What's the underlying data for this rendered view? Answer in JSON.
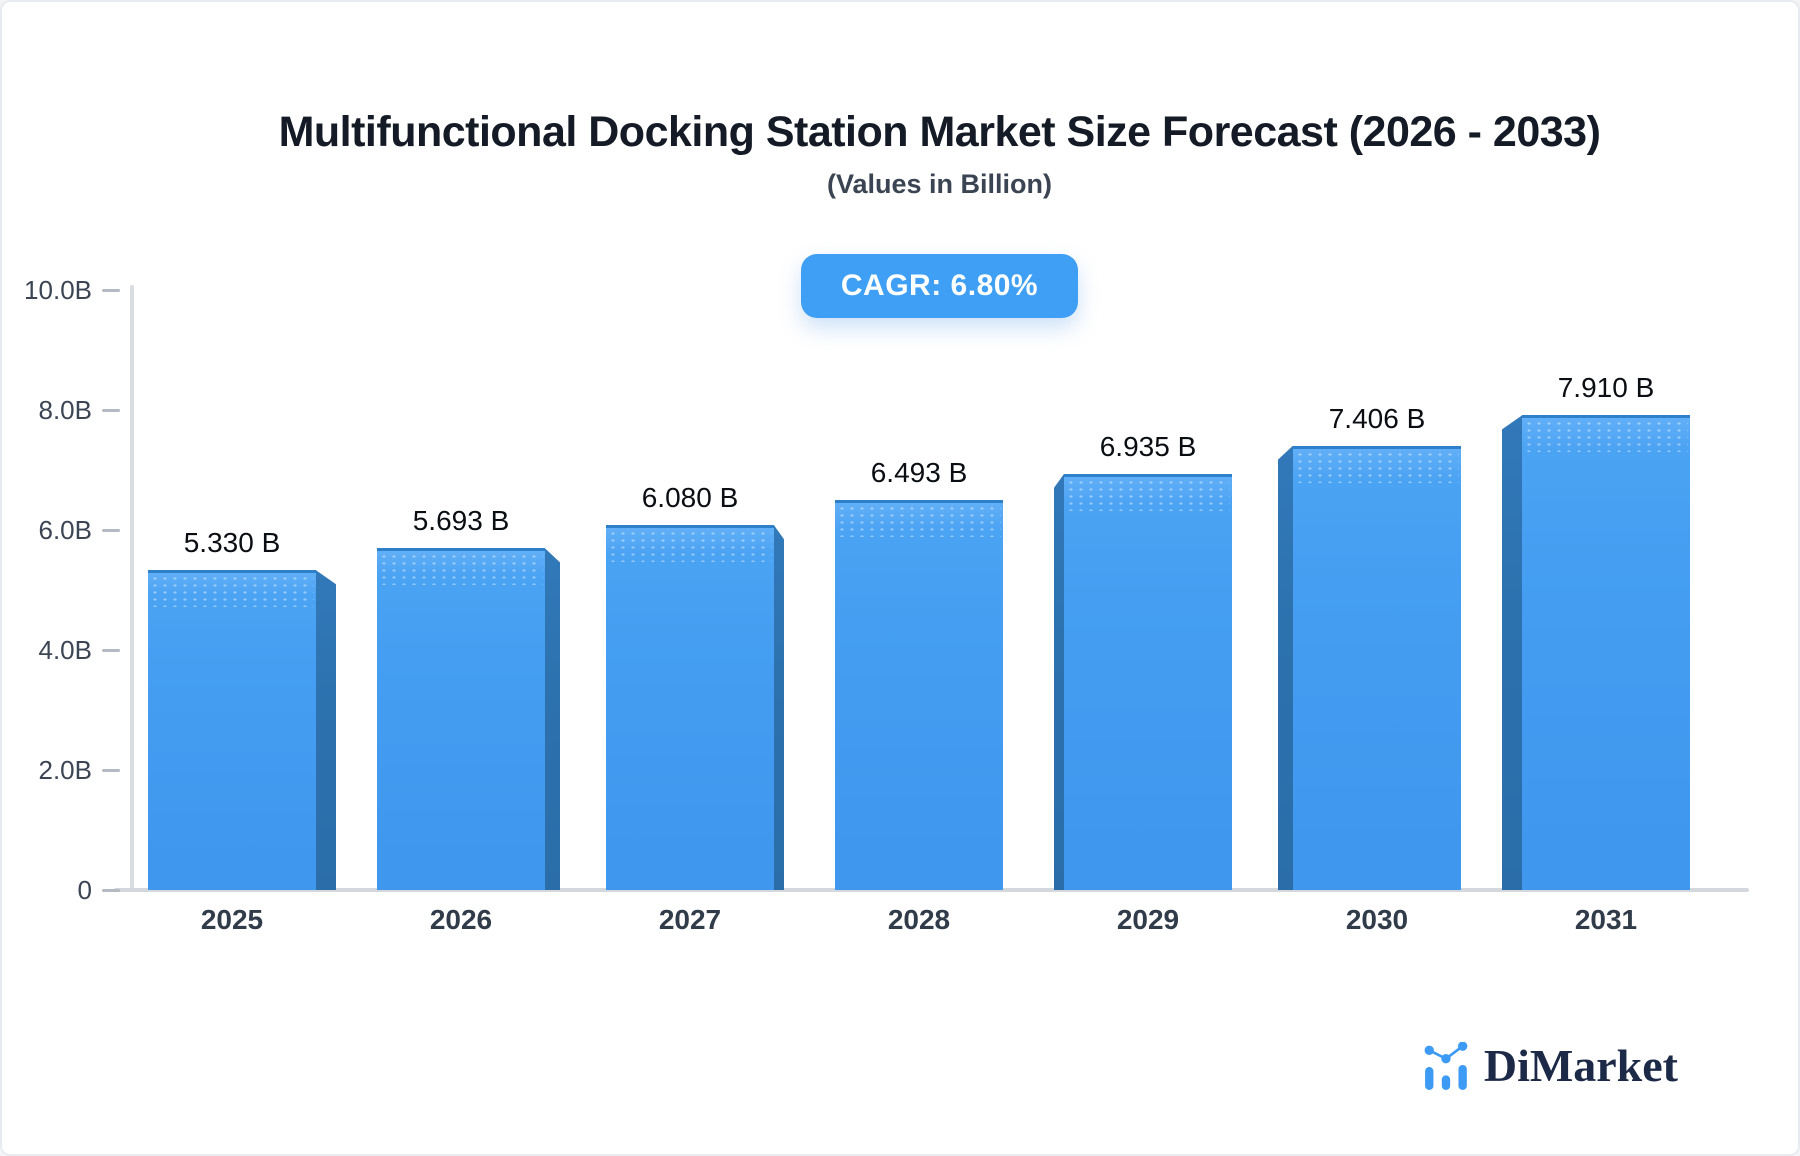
{
  "header": {
    "title": "Multifunctional Docking Station Market Size Forecast (2026 - 2033)",
    "subtitle": "(Values in Billion)"
  },
  "badge": {
    "text": "CAGR: 6.80%",
    "bg": "#3E9FF4",
    "text_color": "#FFFFFF"
  },
  "chart_data": {
    "type": "bar",
    "title": "Multifunctional Docking Station Market Size Forecast (2026 - 2033)",
    "subtitle": "(Values in Billion)",
    "cagr": "6.80%",
    "categories": [
      "2025",
      "2026",
      "2027",
      "2028",
      "2029",
      "2030",
      "2031"
    ],
    "values": [
      5.33,
      5.693,
      6.08,
      6.493,
      6.935,
      7.406,
      7.91
    ],
    "value_labels": [
      "5.330 B",
      "5.693 B",
      "6.080 B",
      "6.493 B",
      "6.935 B",
      "7.406 B",
      "7.910 B"
    ],
    "xlabel": "",
    "ylabel": "",
    "ylim": [
      0,
      10
    ],
    "ytick_values": [
      0,
      2,
      4,
      6,
      8,
      10
    ],
    "ytick_labels": [
      "0",
      "2.0B",
      "4.0B",
      "6.0B",
      "8.0B",
      "10.0B"
    ],
    "grid": false,
    "legend": false,
    "bar_style": "3d-perspective-center",
    "colors": {
      "bar_fill": "#459EF1",
      "bar_fill_top_edge": "#2F80CA",
      "bar_side_dark": "#2C72AF",
      "axis_line": "#D6DADF",
      "tick_dash": "#B3BAC2",
      "value_label_text": "#0A0E13",
      "axis_label_text": "#3C4554",
      "category_text": "#313C4A"
    }
  },
  "footer": {
    "brand": "DiMarket",
    "brand_color": "#1C2947",
    "icon": "bar-chart-logo-icon",
    "icon_color": "#3D9BF5"
  }
}
